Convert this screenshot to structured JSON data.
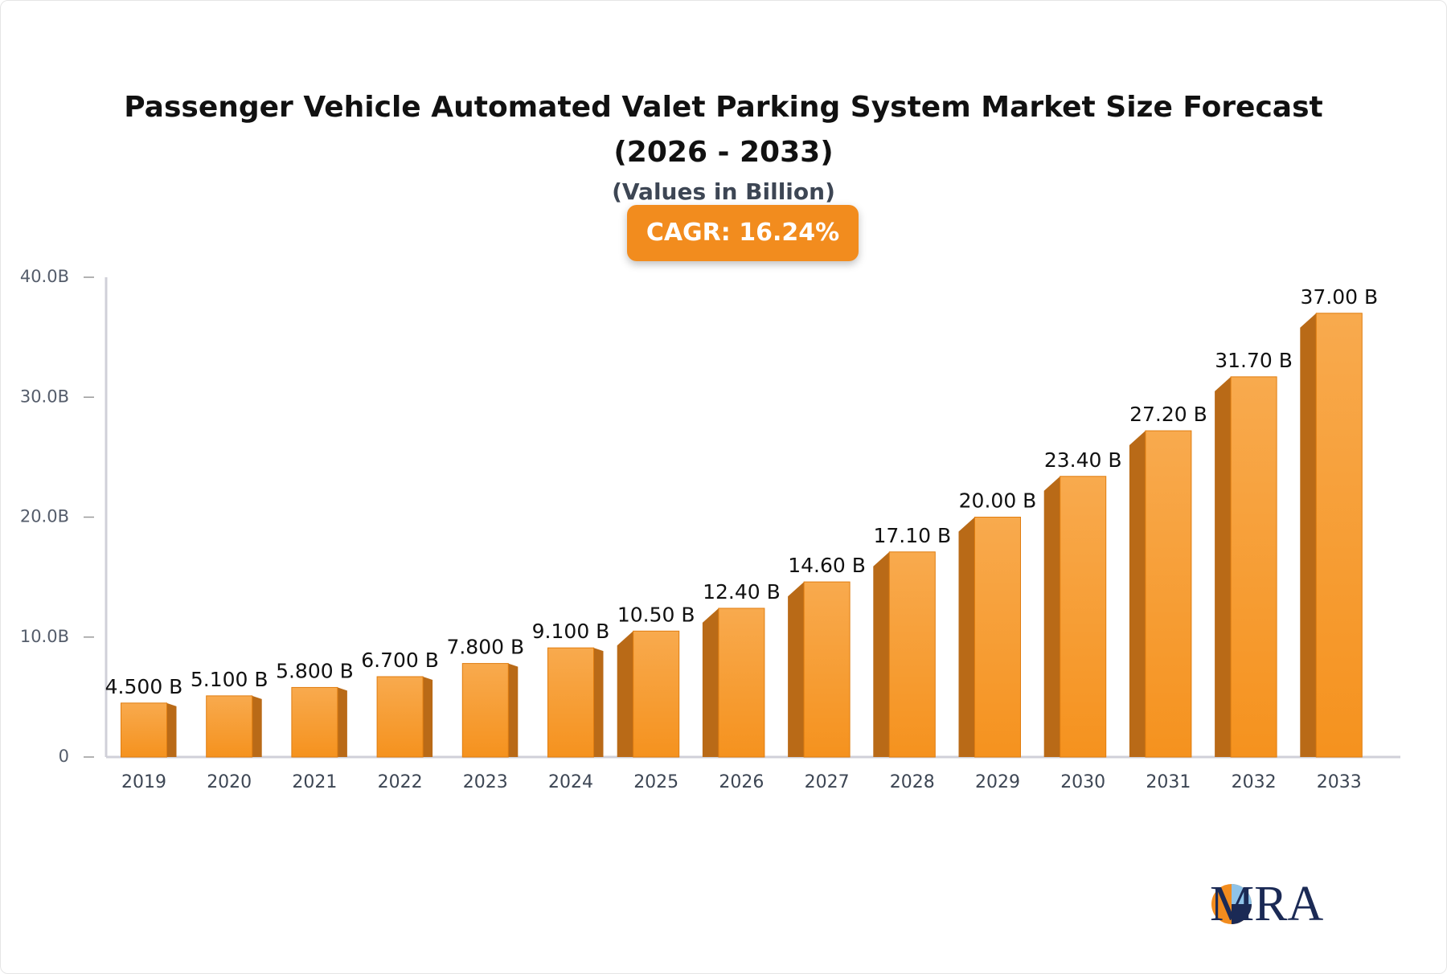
{
  "chart_data": {
    "type": "bar",
    "title": "Passenger Vehicle Automated Valet Parking System Market Size Forecast (2026 - 2033)",
    "subtitle": "(Values in Billion)",
    "annotation": "CAGR: 16.24%",
    "logo": "MRA",
    "categories": [
      "2019",
      "2020",
      "2021",
      "2022",
      "2023",
      "2024",
      "2025",
      "2026",
      "2027",
      "2028",
      "2029",
      "2030",
      "2031",
      "2032",
      "2033"
    ],
    "values": [
      4.5,
      5.1,
      5.8,
      6.7,
      7.8,
      9.1,
      10.5,
      12.4,
      14.6,
      17.1,
      20,
      23.4,
      27.2,
      31.7,
      37
    ],
    "value_labels": [
      "4.500 B",
      "5.100 B",
      "5.800 B",
      "6.700 B",
      "7.800 B",
      "9.100 B",
      "10.50 B",
      "12.40 B",
      "14.60 B",
      "17.10 B",
      "20.00 B",
      "23.40 B",
      "27.20 B",
      "31.70 B",
      "37.00 B"
    ],
    "color": "#f7a040",
    "ylim": [
      0,
      40
    ],
    "yticks": [
      0,
      {
        "value": 10,
        "label": "10.0B"
      },
      {
        "value": 20,
        "label": "20.0B"
      },
      {
        "value": 30,
        "label": "30.0B"
      },
      {
        "value": 40,
        "label": "40.0B"
      }
    ]
  }
}
